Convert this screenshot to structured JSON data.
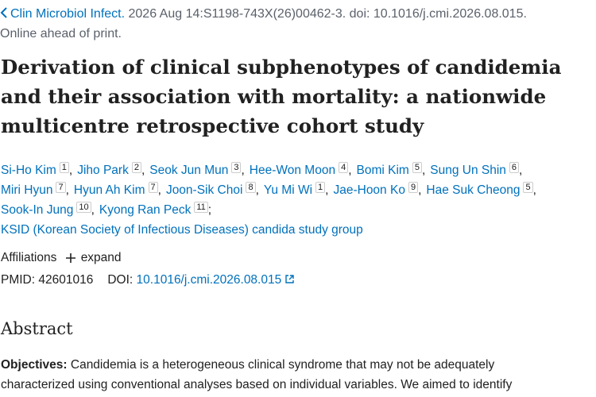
{
  "citation": {
    "journal": "Clin Microbiol Infect.",
    "details": "2026 Aug 14:S1198-743X(26)00462-3. doi: 10.1016/j.cmi.2026.08.015.",
    "status": "Online ahead of print."
  },
  "title": "Derivation of clinical subphenotypes of candidemia and their association with mortality: a nationwide multicentre retrospective cohort study",
  "authors": [
    {
      "name": "Si-Ho Kim",
      "affiliation": 1,
      "separator": ","
    },
    {
      "name": "Jiho Park",
      "affiliation": 2,
      "separator": ","
    },
    {
      "name": "Seok Jun Mun",
      "affiliation": 3,
      "separator": ","
    },
    {
      "name": "Hee-Won Moon",
      "affiliation": 4,
      "separator": ","
    },
    {
      "name": "Bomi Kim",
      "affiliation": 5,
      "separator": ","
    },
    {
      "name": "Sung Un Shin",
      "affiliation": 6,
      "separator": ","
    },
    {
      "name": "Miri Hyun",
      "affiliation": 7,
      "separator": ","
    },
    {
      "name": "Hyun Ah Kim",
      "affiliation": 7,
      "separator": ","
    },
    {
      "name": "Joon-Sik Choi",
      "affiliation": 8,
      "separator": ","
    },
    {
      "name": "Yu Mi Wi",
      "affiliation": 1,
      "separator": ","
    },
    {
      "name": "Jae-Hoon Ko",
      "affiliation": 9,
      "separator": ","
    },
    {
      "name": "Hae Suk Cheong",
      "affiliation": 5,
      "separator": ","
    },
    {
      "name": "Sook-In Jung",
      "affiliation": 10,
      "separator": ","
    },
    {
      "name": "Kyong Ran Peck",
      "affiliation": 11,
      "separator": ";"
    }
  ],
  "group": "KSID (Korean Society of Infectious Diseases) candida study group",
  "affiliations": {
    "label": "Affiliations",
    "toggle": "expand"
  },
  "identifiers": {
    "pmid_label": "PMID:",
    "pmid": "42601016",
    "doi_label": "DOI:",
    "doi": "10.1016/j.cmi.2026.08.015"
  },
  "abstract": {
    "heading": "Abstract",
    "sections": [
      {
        "label": "Objectives:",
        "text": "Candidemia is a heterogeneous clinical syndrome that may not be adequately characterized using conventional analyses based on individual variables. We aimed to identify"
      }
    ]
  }
}
